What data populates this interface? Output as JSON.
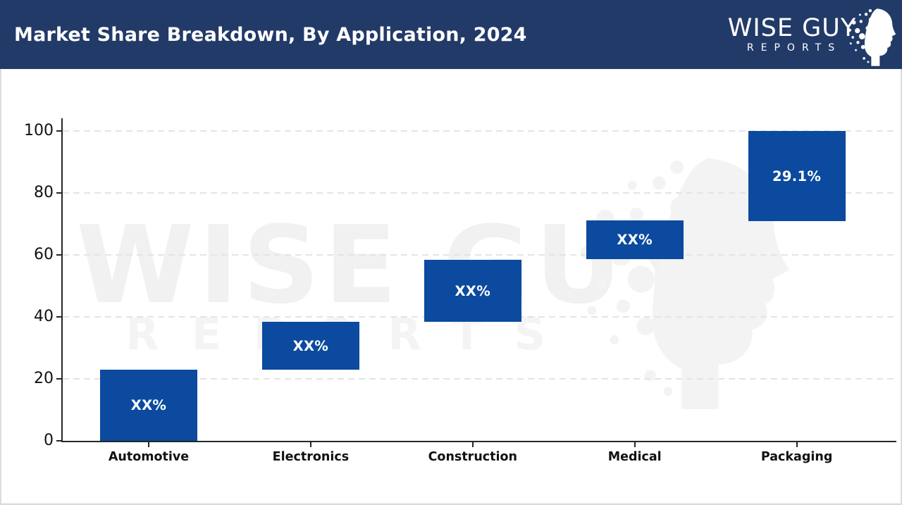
{
  "header": {
    "brand": {
      "name_top": "WISE GUY",
      "name_bottom": "REPORTS"
    }
  },
  "watermark": {
    "line1": "WISE GUY",
    "line2": "REPORTS"
  },
  "chart_data": {
    "type": "bar",
    "subtype": "waterfall-floating-bars",
    "title": "Market Share Breakdown, By Application, 2024",
    "categories": [
      "Automotive",
      "Electronics",
      "Construction",
      "Medical",
      "Packaging"
    ],
    "segments": [
      {
        "category": "Automotive",
        "start": 0,
        "end": 23.0,
        "label": "XX%"
      },
      {
        "category": "Electronics",
        "start": 23.0,
        "end": 38.3,
        "label": "XX%"
      },
      {
        "category": "Construction",
        "start": 38.3,
        "end": 58.5,
        "label": "XX%"
      },
      {
        "category": "Medical",
        "start": 58.6,
        "end": 71.1,
        "label": "XX%"
      },
      {
        "category": "Packaging",
        "start": 70.9,
        "end": 100.0,
        "label": "29.1%"
      }
    ],
    "ylabel": "",
    "xlabel": "",
    "yticks": [
      0,
      20,
      40,
      60,
      80,
      100
    ],
    "ylim": [
      0,
      104.1
    ],
    "grid": "horizontal-dashed",
    "legend": "none",
    "colors": {
      "bar": "#0b4a9e",
      "bar_label": "#ffffff",
      "header_background": "#223a68",
      "header_text": "#ffffff",
      "axis": "#262626",
      "gridline": "#e4e4e4",
      "watermark": "#f1f1f1"
    }
  }
}
